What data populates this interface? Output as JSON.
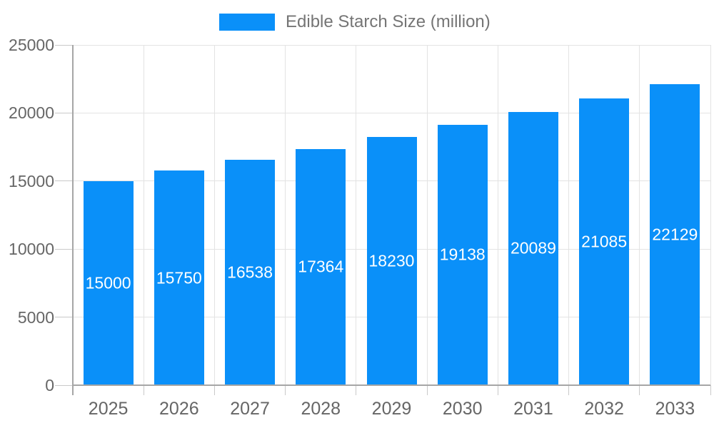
{
  "legend": {
    "label": "Edible Starch Size (million)"
  },
  "colors": {
    "background": "#ffffff",
    "bar": "#0a90f9",
    "bar_label": "#ffffff",
    "axis": "#a6a6a6",
    "grid": "#e3e3e3",
    "tick": "#c9c9c9",
    "label": "#666666",
    "legend_text": "#757575"
  },
  "chart_data": {
    "type": "bar",
    "title": "Edible Starch Size (million)",
    "categories": [
      "2025",
      "2026",
      "2027",
      "2028",
      "2029",
      "2030",
      "2031",
      "2032",
      "2033"
    ],
    "series": [
      {
        "name": "Edible Starch Size (million)",
        "values": [
          15000,
          15750,
          16538,
          17364,
          18230,
          19138,
          20089,
          21085,
          22129
        ]
      }
    ],
    "xlabel": "",
    "ylabel": "",
    "ylim": [
      0,
      25000
    ],
    "yticks": [
      0,
      5000,
      10000,
      15000,
      20000,
      25000
    ],
    "grid": true,
    "legend_position": "top",
    "value_labels_position": "inside-center"
  }
}
